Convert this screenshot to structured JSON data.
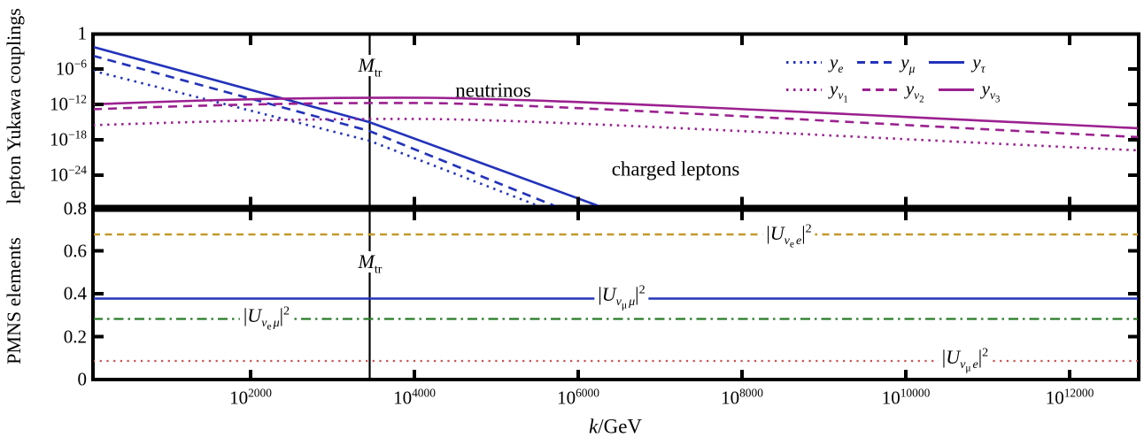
{
  "colors": {
    "charged_lepton_blue": "#2333bb",
    "neutrino_purple": "#9b2190",
    "pmns_ee_gold": "#c4992b",
    "pmns_mumu_blue": "#2333bb",
    "pmns_emu_green": "#267a26",
    "pmns_mue_red": "#cb5050",
    "axis_black": "#000000"
  },
  "x_axis": {
    "label_var": "k",
    "label_rest": "/GeV",
    "ticks": [
      {
        "base": "10",
        "exp": "2000"
      },
      {
        "base": "10",
        "exp": "4000"
      },
      {
        "base": "10",
        "exp": "6000"
      },
      {
        "base": "10",
        "exp": "8000"
      },
      {
        "base": "10",
        "exp": "10000"
      },
      {
        "base": "10",
        "exp": "12000"
      }
    ]
  },
  "top_panel": {
    "ylabel": "lepton Yukawa couplings",
    "yticks": [
      {
        "text": "1"
      },
      {
        "base": "10",
        "exp": "−6"
      },
      {
        "base": "10",
        "exp": "−12"
      },
      {
        "base": "10",
        "exp": "−18"
      },
      {
        "base": "10",
        "exp": "−24"
      }
    ],
    "mtr": {
      "base": "M",
      "sub": "tr"
    },
    "annotation_neutrinos": "neutrinos",
    "annotation_charged": "charged leptons",
    "legend": [
      {
        "var": "y",
        "sub": "e",
        "style": "dotted",
        "color": "charged_lepton_blue"
      },
      {
        "var": "y",
        "sub": "μ",
        "style": "dashed",
        "color": "charged_lepton_blue"
      },
      {
        "var": "y",
        "sub": "τ",
        "style": "solid",
        "color": "charged_lepton_blue"
      },
      {
        "var": "y",
        "sub": "ν",
        "subsub": "1",
        "style": "dotted",
        "color": "neutrino_purple"
      },
      {
        "var": "y",
        "sub": "ν",
        "subsub": "2",
        "style": "dashed",
        "color": "neutrino_purple"
      },
      {
        "var": "y",
        "sub": "ν",
        "subsub": "3",
        "style": "solid",
        "color": "neutrino_purple"
      }
    ]
  },
  "bottom_panel": {
    "ylabel": "PMNS elements",
    "yticks": [
      {
        "text": "0.8"
      },
      {
        "text": "0.6"
      },
      {
        "text": "0.4"
      },
      {
        "text": "0.2"
      },
      {
        "text": "0"
      }
    ],
    "mtr": {
      "base": "M",
      "sub": "tr"
    },
    "lines": [
      {
        "name": "U_nue_e",
        "nu_sub": "e",
        "flavor": "e",
        "value": 0.68,
        "style": "dashed",
        "color": "pmns_ee_gold"
      },
      {
        "name": "U_numu_mu",
        "nu_sub": "μ",
        "flavor": "μ",
        "value": 0.38,
        "style": "solid",
        "color": "pmns_mumu_blue"
      },
      {
        "name": "U_nue_mu",
        "nu_sub": "e",
        "flavor": "μ",
        "value": 0.3,
        "style": "dashdot",
        "color": "pmns_emu_green"
      },
      {
        "name": "U_numu_e",
        "nu_sub": "μ",
        "flavor": "e",
        "value": 0.1,
        "style": "dotted",
        "color": "pmns_mue_red"
      }
    ]
  },
  "chart_data": [
    {
      "type": "line",
      "title": "Running of lepton Yukawa couplings with RG scale k",
      "xlabel": "k/GeV",
      "ylabel": "lepton Yukawa couplings",
      "x_scale": "log",
      "y_scale": "log",
      "x_tick_exponents": [
        2000,
        4000,
        6000,
        8000,
        10000,
        12000
      ],
      "x_range_log10": [
        100,
        12850
      ],
      "y_tick_exponents": [
        0,
        -6,
        -12,
        -18,
        -24
      ],
      "y_range_log10": [
        -29.5,
        0
      ],
      "grid": false,
      "legend_position": "upper right",
      "vline": {
        "label": "M_tr",
        "x_log10": 3450
      },
      "annotations": [
        "neutrinos",
        "charged leptons"
      ],
      "series": [
        {
          "name": "y_e",
          "group": "charged leptons",
          "style": "dotted",
          "color": "#2333bb",
          "points_log10": [
            [
              100,
              -6.2
            ],
            [
              3450,
              -17.9
            ],
            [
              5570,
              -28.9
            ]
          ]
        },
        {
          "name": "y_mu",
          "group": "charged leptons",
          "style": "dashed",
          "color": "#2333bb",
          "points_log10": [
            [
              100,
              -3.7
            ],
            [
              3450,
              -16.2
            ],
            [
              5770,
              -28.9
            ]
          ]
        },
        {
          "name": "y_tau",
          "group": "charged leptons",
          "style": "solid",
          "color": "#2333bb",
          "points_log10": [
            [
              100,
              -2.2
            ],
            [
              3450,
              -14.8
            ],
            [
              6330,
              -28.9
            ]
          ]
        },
        {
          "name": "y_nu1",
          "group": "neutrinos",
          "style": "dotted",
          "color": "#9b2190",
          "points_log10": [
            [
              100,
              -15.3
            ],
            [
              3450,
              -14.2
            ],
            [
              12850,
              -19.6
            ]
          ]
        },
        {
          "name": "y_nu2",
          "group": "neutrinos",
          "style": "dashed",
          "color": "#9b2190",
          "points_log10": [
            [
              100,
              -12.7
            ],
            [
              3450,
              -11.7
            ],
            [
              12850,
              -17.3
            ]
          ]
        },
        {
          "name": "y_nu3",
          "group": "neutrinos",
          "style": "solid",
          "color": "#9b2190",
          "points_log10": [
            [
              100,
              -11.9
            ],
            [
              3450,
              -10.7
            ],
            [
              12850,
              -15.9
            ]
          ]
        }
      ]
    },
    {
      "type": "line",
      "title": "PMNS matrix elements vs RG scale k",
      "xlabel": "k/GeV",
      "ylabel": "PMNS elements",
      "x_scale": "log",
      "x_range_log10": [
        100,
        12850
      ],
      "ylim": [
        0,
        0.81
      ],
      "yticks": [
        0,
        0.2,
        0.4,
        0.6,
        0.8
      ],
      "grid": false,
      "vline": {
        "label": "M_tr",
        "x_log10": 3450
      },
      "series": [
        {
          "name": "|U_nue e|^2",
          "style": "dashed",
          "color": "#c4992b",
          "value": 0.68
        },
        {
          "name": "|U_numu mu|^2",
          "style": "solid",
          "color": "#2333bb",
          "value": 0.38
        },
        {
          "name": "|U_nue mu|^2",
          "style": "dashdot",
          "color": "#267a26",
          "value": 0.3
        },
        {
          "name": "|U_numu e|^2",
          "style": "dotted",
          "color": "#cb5050",
          "value": 0.1
        }
      ]
    }
  ]
}
